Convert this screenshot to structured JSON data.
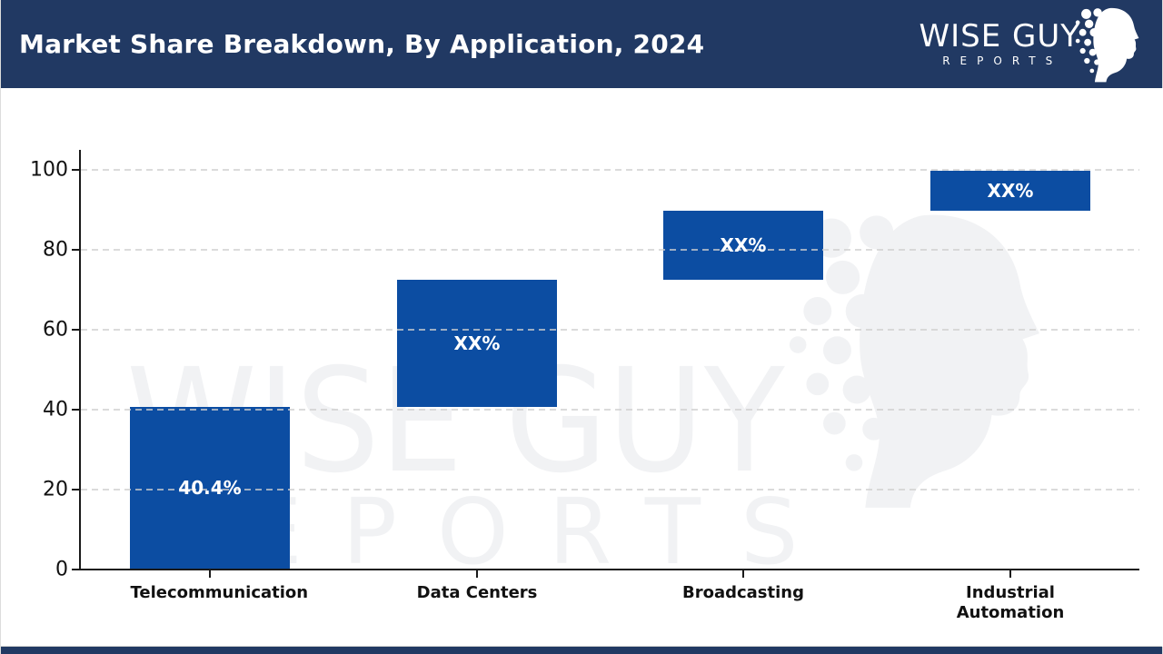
{
  "header": {
    "title": "Market Share Breakdown, By Application, 2024",
    "logo": {
      "line1": "WISE GUY",
      "line2": "REPORTS"
    }
  },
  "watermark": {
    "line1": "WISE GUY",
    "line2": "REPORTS"
  },
  "colors": {
    "header_bg": "#213963",
    "footer_bg": "#213963",
    "bar": "#0c4da2",
    "bar_label": "#ffffff",
    "watermark": "#f1f2f4",
    "gridline": "#cfcfcf",
    "axis": "#1a1a1a",
    "tick_label": "#111111"
  },
  "chart_data": {
    "type": "bar",
    "subtype": "waterfall",
    "title": "Market Share Breakdown, By Application, 2024",
    "categories": [
      "Telecommunication",
      "Data Centers",
      "Broadcasting",
      "Industrial Automation"
    ],
    "segments": [
      {
        "category": "Telecommunication",
        "start": 0,
        "end": 40.4,
        "value_label": "40.4%"
      },
      {
        "category": "Data Centers",
        "start": 40.4,
        "end": 72.3,
        "value_label": "XX%"
      },
      {
        "category": "Broadcasting",
        "start": 72.3,
        "end": 89.5,
        "value_label": "XX%"
      },
      {
        "category": "Industrial Automation",
        "start": 89.5,
        "end": 99.6,
        "value_label": "XX%"
      }
    ],
    "xlabel": "",
    "ylabel": "",
    "ylim": [
      0,
      100
    ],
    "yticks": [
      0,
      20,
      40,
      60,
      80,
      100
    ],
    "grid": "horizontal dashed, drawn over bars",
    "legend": "none"
  }
}
